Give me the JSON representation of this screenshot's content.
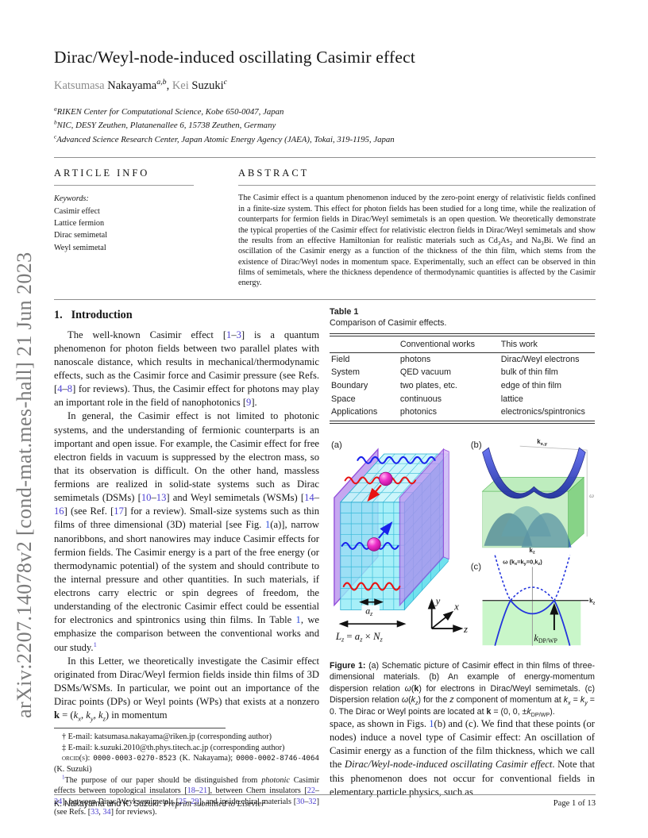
{
  "colors": {
    "cite": "#4d40d2",
    "link": "#3050dc",
    "banner_gray": "#7b7b7b",
    "plate_purple": "#c2a0ef",
    "slab_cyan": "#93ecf7",
    "wave_red": "#e81212",
    "wave_blue": "#1822ec",
    "ball_magenta": "#f02cc8",
    "band_blue": "#2b3bb4",
    "box_green": "#8fdc8f",
    "region_green": "#c9f6c9"
  },
  "arxiv_banner": "arXiv:2207.14078v2  [cond-mat.mes-hall]  21 Jun 2023",
  "header": {
    "title": "Dirac/Weyl-node-induced oscillating Casimir effect",
    "authors": [
      {
        "t": "Katsumasa ",
        "s": "gray"
      },
      {
        "t": "Nakayama"
      },
      {
        "t": "a,b",
        "s": "supi"
      },
      {
        "t": ",  "
      },
      {
        "t": "Kei ",
        "s": "gray"
      },
      {
        "t": "Suzuki"
      },
      {
        "t": "c",
        "s": "supi"
      }
    ],
    "affiliations": [
      [
        {
          "t": "a",
          "s": "supi"
        },
        {
          "t": "RIKEN Center for Computational Science, Kobe 650-0047, Japan",
          "s": "i"
        }
      ],
      [
        {
          "t": "b",
          "s": "supi"
        },
        {
          "t": "NIC, DESY Zeuthen, Platanenallee 6, 15738 Zeuthen, Germany",
          "s": "i"
        }
      ],
      [
        {
          "t": "c",
          "s": "supi"
        },
        {
          "t": "Advanced Science Research Center, Japan Atomic Energy Agency (JAEA), Tokai, 319-1195, Japan",
          "s": "i"
        }
      ]
    ]
  },
  "article_info": {
    "heading": "ARTICLE INFO",
    "keywords_label": "Keywords:",
    "keywords": [
      "Casimir effect",
      "Lattice fermion",
      "Dirac semimetal",
      "Weyl semimetal"
    ]
  },
  "abstract": {
    "heading": "ABSTRACT",
    "segments": [
      {
        "t": "The Casimir effect is a quantum phenomenon induced by the zero-point energy of relativistic fields confined in a finite-size system. This effect for photon fields has been studied for a long time, while the realization of counterparts for fermion fields in Dirac/Weyl semimetals is an open question. We theoretically demonstrate the typical properties of the Casimir effect for relativistic electron fields in Dirac/Weyl semimetals and show the results from an effective Hamiltonian for realistic materials such as Cd"
      },
      {
        "t": "3",
        "s": "sub"
      },
      {
        "t": "As"
      },
      {
        "t": "2",
        "s": "sub"
      },
      {
        "t": " and Na"
      },
      {
        "t": "3",
        "s": "sub"
      },
      {
        "t": "Bi. We find an oscillation of the Casimir energy as a function of the thickness of the thin film, which stems from the existence of Dirac/Weyl nodes in momentum space. Experimentally, such an effect can be observed in thin films of semimetals, where the thickness dependence of thermodynamic quantities is affected by the Casimir energy."
      }
    ]
  },
  "intro": {
    "number": "1.",
    "heading": "Introduction",
    "para1": [
      {
        "t": "The well-known Casimir effect ["
      },
      {
        "t": "1",
        "s": "cite"
      },
      {
        "t": "–"
      },
      {
        "t": "3",
        "s": "cite"
      },
      {
        "t": "] is a quantum phenomenon for photon fields between two parallel plates with nanoscale distance, which results in mechanical/thermodynamic effects, such as the Casimir force and Casimir pressure (see Refs. ["
      },
      {
        "t": "4",
        "s": "cite"
      },
      {
        "t": "–"
      },
      {
        "t": "8",
        "s": "cite"
      },
      {
        "t": "] for reviews). Thus, the Casimir effect for photons may play an important role in the field of nanophotonics ["
      },
      {
        "t": "9",
        "s": "cite"
      },
      {
        "t": "]."
      }
    ],
    "para2": [
      {
        "t": "In general, the Casimir effect is not limited to photonic systems, and the understanding of fermionic counterparts is an important and open issue. For example, the Casimir effect for free electron fields in vacuum is suppressed by the electron mass, so that its observation is difficult. On the other hand, massless fermions are realized in solid-state systems such as Dirac semimetals (DSMs) ["
      },
      {
        "t": "10",
        "s": "cite"
      },
      {
        "t": "–"
      },
      {
        "t": "13",
        "s": "cite"
      },
      {
        "t": "] and Weyl semimetals (WSMs) ["
      },
      {
        "t": "14",
        "s": "cite"
      },
      {
        "t": "–"
      },
      {
        "t": "16",
        "s": "cite"
      },
      {
        "t": "] (see Ref. ["
      },
      {
        "t": "17",
        "s": "cite"
      },
      {
        "t": "] for a review). Small-size systems such as thin films of three dimensional (3D) material [see Fig. "
      },
      {
        "t": "1",
        "s": "link"
      },
      {
        "t": "(a)], narrow nanoribbons, and short nanowires may induce Casimir effects for fermion fields. The Casimir energy is a part of the free energy (or thermodynamic potential) of the system and should contribute to the internal pressure and other quantities. In such materials, if electrons carry electric or spin degrees of freedom, the understanding of the electronic Casimir effect could be essential for electronics and spintronics using thin films. In Table "
      },
      {
        "t": "1",
        "s": "link"
      },
      {
        "t": ", we emphasize the comparison between the conventional works and our study."
      },
      {
        "t": "1",
        "s": "supcite"
      }
    ],
    "para3": [
      {
        "t": "In this Letter, we theoretically investigate the Casimir effect originated from Dirac/Weyl fermion fields inside thin films of 3D DSMs/WSMs. In particular, we point out an importance of the Dirac points (DPs) or Weyl points (WPs) that exists at a nonzero "
      },
      {
        "t": "k",
        "s": "b"
      },
      {
        "t": " = ("
      },
      {
        "t": "k",
        "s": "i"
      },
      {
        "t": "x",
        "s": "subi"
      },
      {
        "t": ", "
      },
      {
        "t": "k",
        "s": "i"
      },
      {
        "t": "y",
        "s": "subi"
      },
      {
        "t": ", "
      },
      {
        "t": "k",
        "s": "i"
      },
      {
        "t": "z",
        "s": "subi"
      },
      {
        "t": ") in momentum"
      }
    ]
  },
  "footnotes": {
    "email1": "† E-mail: katsumasa.nakayama@riken.jp (corresponding author)",
    "email2": "‡ E-mail: k.suzuki.2010@th.phys.titech.ac.jp (corresponding author)",
    "orcid": [
      {
        "t": "orcid(s): ",
        "s": "sc"
      },
      {
        "t": "0000-0003-0270-8523",
        "s": "mono"
      },
      {
        "t": " (K. Nakayama); "
      },
      {
        "t": "0000-0002-8746-4064",
        "s": "mono"
      },
      {
        "t": " (K. Suzuki)"
      }
    ],
    "note1": [
      {
        "t": "1",
        "s": "supcite"
      },
      {
        "t": "The purpose of our paper should be distinguished from "
      },
      {
        "t": "photonic",
        "s": "i"
      },
      {
        "t": " Casimir effects between topological insulators ["
      },
      {
        "t": "18",
        "s": "cite"
      },
      {
        "t": "–"
      },
      {
        "t": "21",
        "s": "cite"
      },
      {
        "t": "], between Chern insulators ["
      },
      {
        "t": "22",
        "s": "cite"
      },
      {
        "t": "–"
      },
      {
        "t": "24",
        "s": "cite"
      },
      {
        "t": "], between Dirac/Weyl semimetals ["
      },
      {
        "t": "25",
        "s": "cite"
      },
      {
        "t": "–"
      },
      {
        "t": "29",
        "s": "cite"
      },
      {
        "t": "], and inside chiral materials ["
      },
      {
        "t": "30",
        "s": "cite"
      },
      {
        "t": "–"
      },
      {
        "t": "32",
        "s": "cite"
      },
      {
        "t": "] (see Refs. ["
      },
      {
        "t": "33",
        "s": "cite"
      },
      {
        "t": ", "
      },
      {
        "t": "34",
        "s": "cite"
      },
      {
        "t": "] for reviews)."
      }
    ]
  },
  "table1": {
    "label": "Table 1",
    "caption": "Comparison of Casimir effects.",
    "headers": [
      "",
      "Conventional works",
      "This work"
    ],
    "rows": [
      [
        "Field",
        "photons",
        "Dirac/Weyl electrons"
      ],
      [
        "System",
        "QED vacuum",
        "bulk of thin film"
      ],
      [
        "Boundary",
        "two plates, etc.",
        "edge of thin film"
      ],
      [
        "Space",
        "continuous",
        "lattice"
      ],
      [
        "Applications",
        "photonics",
        "electronics/spintronics"
      ]
    ]
  },
  "figure": {
    "panel_a": {
      "label": "(a)",
      "az": {
        "p": "a",
        "s": "z"
      },
      "lz": {
        "p1": "L",
        "s1": "z",
        "p2": " = ",
        "p3": "a",
        "s2": "z",
        "p4": " × ",
        "p5": "N",
        "s3": "z"
      },
      "axis_y": "y",
      "axis_x": "x",
      "axis_z": "z"
    },
    "panel_b": {
      "label": "(b)",
      "kxy": {
        "p": "k",
        "s": "x,y"
      },
      "kz": {
        "p": "k",
        "s": "z"
      },
      "omega": "ω"
    },
    "panel_c": {
      "label": "(c)",
      "title": {
        "p1": "ω (",
        "p2": "k",
        "s1": "x",
        "p3": "=",
        "p4": "k",
        "s2": "y",
        "p5": "=0,",
        "p6": "k",
        "s3": "z",
        "p7": ")"
      },
      "kz": {
        "p": "k",
        "s": "z"
      },
      "kdp": {
        "p": "k",
        "s": "DP/WP"
      }
    },
    "caption": [
      {
        "t": "Figure 1:",
        "s": "b"
      },
      {
        "t": " (a) Schematic picture of Casimir effect in thin films of three-dimensional materials. (b) An example of energy-momentum dispersion relation "
      },
      {
        "t": "ω",
        "s": "i"
      },
      {
        "t": "("
      },
      {
        "t": "k",
        "s": "b"
      },
      {
        "t": ") for electrons in Dirac/Weyl semimetals. (c) Dispersion relation "
      },
      {
        "t": "ω",
        "s": "i"
      },
      {
        "t": "("
      },
      {
        "t": "k",
        "s": "i"
      },
      {
        "t": "z",
        "s": "subi"
      },
      {
        "t": ") for the "
      },
      {
        "t": "z",
        "s": "i"
      },
      {
        "t": " component of momentum at "
      },
      {
        "t": "k",
        "s": "i"
      },
      {
        "t": "x",
        "s": "subi"
      },
      {
        "t": " = "
      },
      {
        "t": "k",
        "s": "i"
      },
      {
        "t": "y",
        "s": "subi"
      },
      {
        "t": " = 0. The Dirac or Weyl points are located at "
      },
      {
        "t": "k",
        "s": "b"
      },
      {
        "t": " = (0, 0, ±"
      },
      {
        "t": "k",
        "s": "i"
      },
      {
        "t": "DP/WP",
        "s": "sub"
      },
      {
        "t": ")."
      }
    ]
  },
  "rcol_para": [
    {
      "t": "space, as shown in Figs. "
    },
    {
      "t": "1",
      "s": "link"
    },
    {
      "t": "(b) and (c). We find that these points (or nodes) induce a novel type of Casimir effect: An oscillation of Casimir energy as a function of the film thickness, which we call the "
    },
    {
      "t": "Dirac/Weyl-node-induced oscillating Casimir effect",
      "s": "i"
    },
    {
      "t": ". Note that this phenomenon does not occur for conventional fields in elementary particle physics, such as"
    }
  ],
  "footer": {
    "left_authors": "K. Nakayama and K. Suzuki: ",
    "left_note": "Preprint submitted to Elsevier",
    "page": "Page 1 of 13"
  }
}
